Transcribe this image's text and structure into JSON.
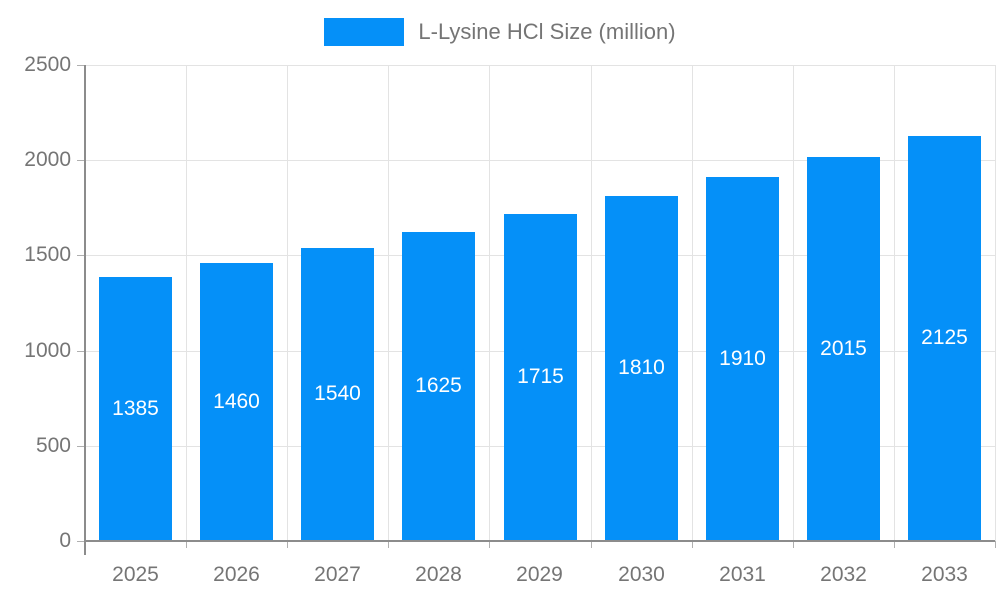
{
  "colors": {
    "bar": "#0590F8",
    "grid": "#e3e3e3",
    "axis": "#8c8c8c",
    "tick": "#b0b0b0",
    "axis_text": "#757575",
    "data_label_text": "#ffffff",
    "background": "#ffffff"
  },
  "chart_data": {
    "type": "bar",
    "title": "L-Lysine HCl Size (million)",
    "legend_label": "L-Lysine HCl Size (million)",
    "legend_position": "top",
    "categories": [
      "2025",
      "2026",
      "2027",
      "2028",
      "2029",
      "2030",
      "2031",
      "2032",
      "2033"
    ],
    "values": [
      1385,
      1460,
      1540,
      1625,
      1715,
      1810,
      1910,
      2015,
      2125
    ],
    "data_labels": [
      "1385",
      "1460",
      "1540",
      "1625",
      "1715",
      "1810",
      "1910",
      "2015",
      "2125"
    ],
    "xlabel": "",
    "ylabel": "",
    "ylim": [
      0,
      2500
    ],
    "yticks": [
      0,
      500,
      1000,
      1500,
      2000,
      2500
    ],
    "ytick_labels": [
      "0",
      "500",
      "1000",
      "1500",
      "2000",
      "2500"
    ],
    "grid": true
  }
}
